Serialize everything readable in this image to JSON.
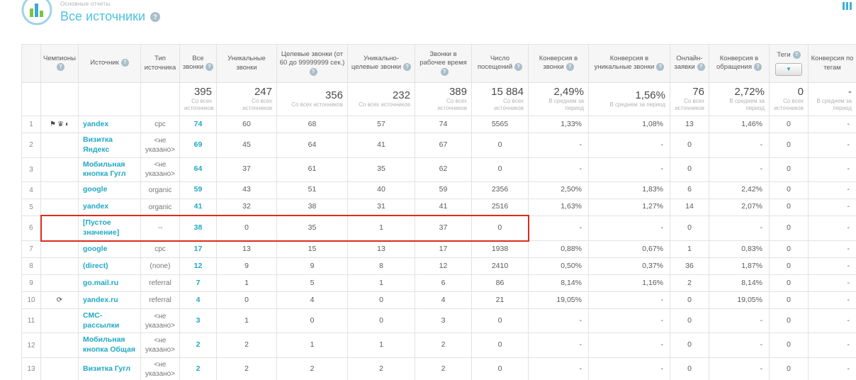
{
  "header": {
    "breadcrumb": "Основные отчеты",
    "title": "Все источники"
  },
  "icons": {
    "help": "?",
    "dropdown": "▼",
    "flag": "⚑",
    "crown": "♛",
    "contrast": "◐",
    "sync": "⟳"
  },
  "table": {
    "columns": [
      {
        "key": "num",
        "label": "",
        "help": false
      },
      {
        "key": "champions",
        "label": "Чемпионы",
        "help": true
      },
      {
        "key": "source",
        "label": "Источник",
        "help": true
      },
      {
        "key": "type",
        "label": "Тип источника",
        "help": false
      },
      {
        "key": "all_calls",
        "label": "Все звонки",
        "help": true
      },
      {
        "key": "unique_calls",
        "label": "Уникальные звонки",
        "help": false
      },
      {
        "key": "target_calls",
        "label": "Целевые звонки (от 60 до 99999999 сек.)",
        "help": true
      },
      {
        "key": "unique_target_calls",
        "label": "Уникально-целевые звонки",
        "help": true
      },
      {
        "key": "work_time_calls",
        "label": "Звонки в рабочее время",
        "help": true
      },
      {
        "key": "visits",
        "label": "Число посещений",
        "help": true
      },
      {
        "key": "conv_calls",
        "label": "Конверсия в звонки",
        "help": true
      },
      {
        "key": "conv_unique_calls",
        "label": "Конверсия в уникальные звонки",
        "help": true
      },
      {
        "key": "online_requests",
        "label": "Онлайн-заявки",
        "help": true
      },
      {
        "key": "conv_requests",
        "label": "Конверсия в обращения",
        "help": true
      },
      {
        "key": "tags",
        "label": "Теги",
        "help": true,
        "dropdown": true
      },
      {
        "key": "conv_tags",
        "label": "Конверсия по тегам",
        "help": false
      }
    ],
    "summary": {
      "all_calls": {
        "value": "395",
        "caption": "Со всех источников"
      },
      "unique_calls": {
        "value": "247",
        "caption": "Со всех источников"
      },
      "target_calls": {
        "value": "356",
        "caption": "Со всех источников"
      },
      "unique_target_calls": {
        "value": "232",
        "caption": "Со всех источников"
      },
      "work_time_calls": {
        "value": "389",
        "caption": "Со всех источников"
      },
      "visits": {
        "value": "15 884",
        "caption": "Со всех источников"
      },
      "conv_calls": {
        "value": "2,49%",
        "caption": "В среднем за период"
      },
      "conv_unique_calls": {
        "value": "1,56%",
        "caption": "В среднем за период"
      },
      "online_requests": {
        "value": "76",
        "caption": "Со всех источников"
      },
      "conv_requests": {
        "value": "2,72%",
        "caption": "В среднем за период"
      },
      "tags": {
        "value": "0",
        "caption": "Со всех источников"
      },
      "conv_tags": {
        "value": "-",
        "caption": "В среднем за период"
      }
    },
    "rows": [
      {
        "num": "1",
        "champions": [
          "flag",
          "crown",
          "contrast"
        ],
        "source": "yandex",
        "type": "cpc",
        "all_calls": "74",
        "unique_calls": "60",
        "target_calls": "68",
        "unique_target_calls": "57",
        "work_time_calls": "74",
        "visits": "5565",
        "conv_calls": "1,33%",
        "conv_unique_calls": "1,08%",
        "online_requests": "13",
        "conv_requests": "1,46%",
        "tags": "0",
        "conv_tags": "-",
        "highlighted": false
      },
      {
        "num": "2",
        "champions": [],
        "source": "Визитка Яндекс",
        "type": "<не указано>",
        "all_calls": "69",
        "unique_calls": "45",
        "target_calls": "64",
        "unique_target_calls": "41",
        "work_time_calls": "67",
        "visits": "0",
        "conv_calls": "-",
        "conv_unique_calls": "-",
        "online_requests": "0",
        "conv_requests": "-",
        "tags": "0",
        "conv_tags": "-",
        "highlighted": false
      },
      {
        "num": "3",
        "champions": [],
        "source": "Мобильная кнопка Гугл",
        "type": "<не указано>",
        "all_calls": "64",
        "unique_calls": "37",
        "target_calls": "61",
        "unique_target_calls": "35",
        "work_time_calls": "62",
        "visits": "0",
        "conv_calls": "-",
        "conv_unique_calls": "-",
        "online_requests": "0",
        "conv_requests": "-",
        "tags": "0",
        "conv_tags": "-",
        "highlighted": false
      },
      {
        "num": "4",
        "champions": [],
        "source": "google",
        "type": "organic",
        "all_calls": "59",
        "unique_calls": "43",
        "target_calls": "51",
        "unique_target_calls": "40",
        "work_time_calls": "59",
        "visits": "2356",
        "conv_calls": "2,50%",
        "conv_unique_calls": "1,83%",
        "online_requests": "6",
        "conv_requests": "2,42%",
        "tags": "0",
        "conv_tags": "-",
        "highlighted": false
      },
      {
        "num": "5",
        "champions": [],
        "source": "yandex",
        "type": "organic",
        "all_calls": "41",
        "unique_calls": "32",
        "target_calls": "38",
        "unique_target_calls": "31",
        "work_time_calls": "41",
        "visits": "2516",
        "conv_calls": "1,63%",
        "conv_unique_calls": "1,27%",
        "online_requests": "14",
        "conv_requests": "2,07%",
        "tags": "0",
        "conv_tags": "-",
        "highlighted": false
      },
      {
        "num": "6",
        "champions": [],
        "source": "[Пустое значение]",
        "type": "--",
        "all_calls": "38",
        "unique_calls": "0",
        "target_calls": "35",
        "unique_target_calls": "1",
        "work_time_calls": "37",
        "visits": "0",
        "conv_calls": "-",
        "conv_unique_calls": "-",
        "online_requests": "0",
        "conv_requests": "-",
        "tags": "0",
        "conv_tags": "-",
        "highlighted": true
      },
      {
        "num": "7",
        "champions": [],
        "source": "google",
        "type": "cpc",
        "all_calls": "17",
        "unique_calls": "13",
        "target_calls": "15",
        "unique_target_calls": "13",
        "work_time_calls": "17",
        "visits": "1938",
        "conv_calls": "0,88%",
        "conv_unique_calls": "0,67%",
        "online_requests": "1",
        "conv_requests": "0,83%",
        "tags": "0",
        "conv_tags": "-",
        "highlighted": false
      },
      {
        "num": "8",
        "champions": [],
        "source": "(direct)",
        "type": "(none)",
        "all_calls": "12",
        "unique_calls": "9",
        "target_calls": "9",
        "unique_target_calls": "8",
        "work_time_calls": "12",
        "visits": "2410",
        "conv_calls": "0,50%",
        "conv_unique_calls": "0,37%",
        "online_requests": "36",
        "conv_requests": "1,87%",
        "tags": "0",
        "conv_tags": "-",
        "highlighted": false
      },
      {
        "num": "9",
        "champions": [],
        "source": "go.mail.ru",
        "type": "referral",
        "all_calls": "7",
        "unique_calls": "1",
        "target_calls": "5",
        "unique_target_calls": "1",
        "work_time_calls": "6",
        "visits": "86",
        "conv_calls": "8,14%",
        "conv_unique_calls": "1,16%",
        "online_requests": "2",
        "conv_requests": "8,14%",
        "tags": "0",
        "conv_tags": "-",
        "highlighted": false
      },
      {
        "num": "10",
        "champions": [
          "sync"
        ],
        "source": "yandex.ru",
        "type": "referral",
        "all_calls": "4",
        "unique_calls": "0",
        "target_calls": "4",
        "unique_target_calls": "0",
        "work_time_calls": "4",
        "visits": "21",
        "conv_calls": "19,05%",
        "conv_unique_calls": "-",
        "online_requests": "0",
        "conv_requests": "19,05%",
        "tags": "0",
        "conv_tags": "-",
        "highlighted": false
      },
      {
        "num": "11",
        "champions": [],
        "source": "СМС-рассылки",
        "type": "<не указано>",
        "all_calls": "3",
        "unique_calls": "1",
        "target_calls": "0",
        "unique_target_calls": "0",
        "work_time_calls": "3",
        "visits": "0",
        "conv_calls": "-",
        "conv_unique_calls": "-",
        "online_requests": "0",
        "conv_requests": "-",
        "tags": "0",
        "conv_tags": "-",
        "highlighted": false
      },
      {
        "num": "12",
        "champions": [],
        "source": "Мобильная кнопка Общая",
        "type": "<не указано>",
        "all_calls": "2",
        "unique_calls": "2",
        "target_calls": "1",
        "unique_target_calls": "1",
        "work_time_calls": "2",
        "visits": "0",
        "conv_calls": "-",
        "conv_unique_calls": "-",
        "online_requests": "0",
        "conv_requests": "-",
        "tags": "0",
        "conv_tags": "-",
        "highlighted": false
      },
      {
        "num": "13",
        "champions": [],
        "source": "Визитка Гугл",
        "type": "<не указано>",
        "all_calls": "2",
        "unique_calls": "2",
        "target_calls": "2",
        "unique_target_calls": "2",
        "work_time_calls": "2",
        "visits": "0",
        "conv_calls": "-",
        "conv_unique_calls": "-",
        "online_requests": "0",
        "conv_requests": "-",
        "tags": "0",
        "conv_tags": "-",
        "highlighted": false
      }
    ]
  }
}
